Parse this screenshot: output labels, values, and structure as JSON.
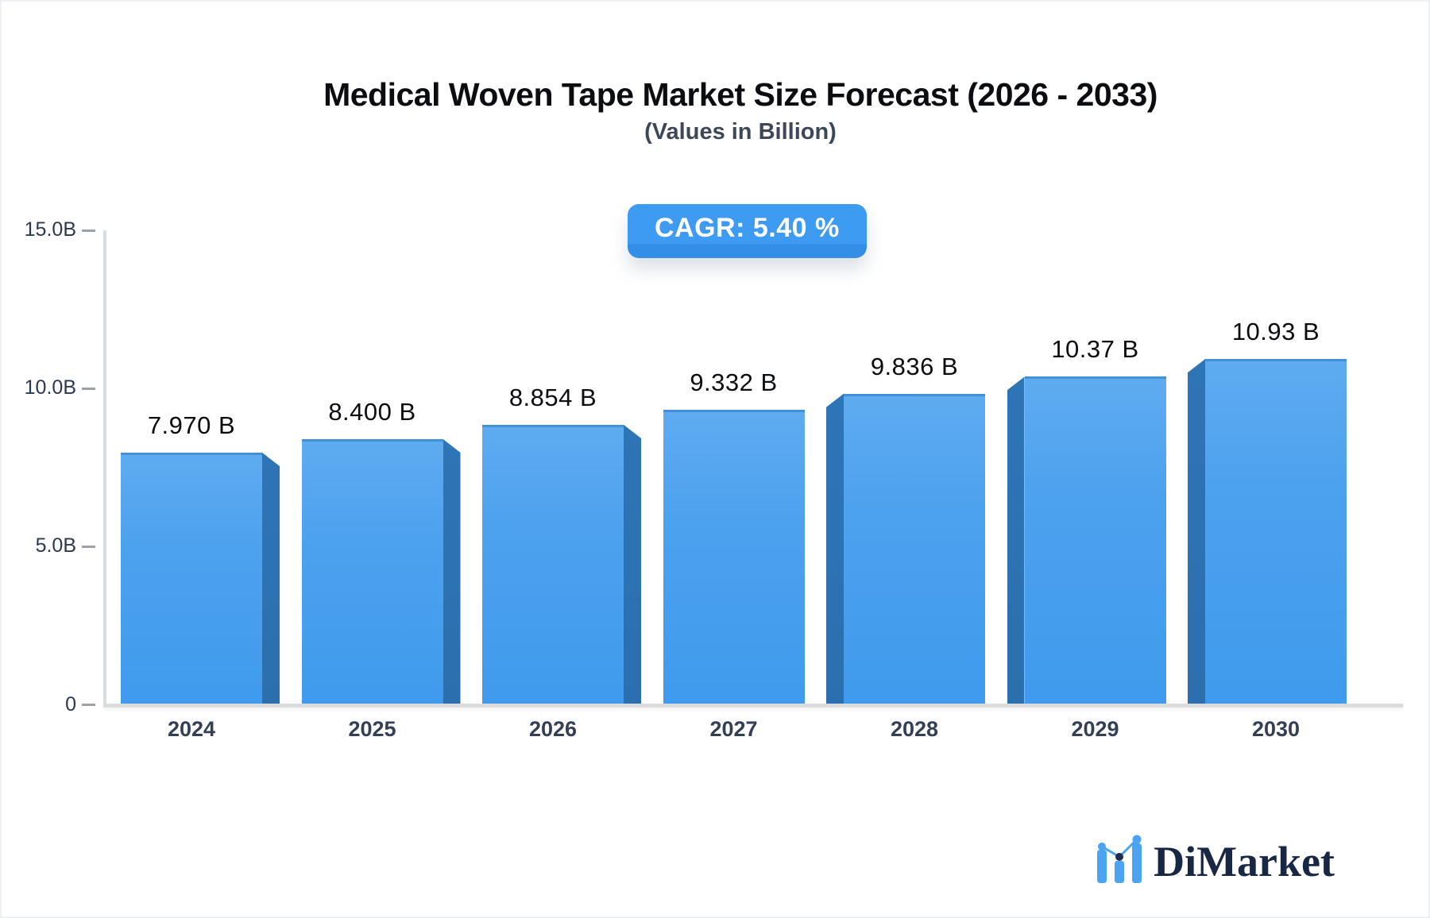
{
  "header": {
    "title": "Medical Woven Tape Market Size Forecast (2026 - 2033)",
    "subtitle": "(Values in Billion)",
    "cagr_badge": "CAGR: 5.40 %"
  },
  "chart_data": {
    "type": "bar",
    "title": "Medical Woven Tape Market Size Forecast (2026 - 2033)",
    "subtitle": "(Values in Billion)",
    "cagr": "5.40 %",
    "categories": [
      "2024",
      "2025",
      "2026",
      "2027",
      "2028",
      "2029",
      "2030"
    ],
    "values": [
      7.97,
      8.4,
      8.854,
      9.332,
      9.836,
      10.37,
      10.93
    ],
    "value_labels": [
      "7.970 B",
      "8.400 B",
      "8.854 B",
      "9.332 B",
      "9.836 B",
      "10.37 B",
      "10.93 B"
    ],
    "xlabel": "",
    "ylabel": "",
    "ylim": [
      0,
      15
    ],
    "y_ticks": [
      {
        "value": 0,
        "label": "0"
      },
      {
        "value": 5,
        "label": "5.0B"
      },
      {
        "value": 10,
        "label": "10.0B"
      },
      {
        "value": 15,
        "label": "15.0B"
      }
    ],
    "grid": false,
    "legend": false,
    "bar_color": "#47a0ee",
    "bar_side_color": "#2d72b3",
    "badge_color": "#3e9bf2"
  },
  "branding": {
    "logo_text": "DiMarket",
    "logo_icon": "bar-chart-icon"
  }
}
